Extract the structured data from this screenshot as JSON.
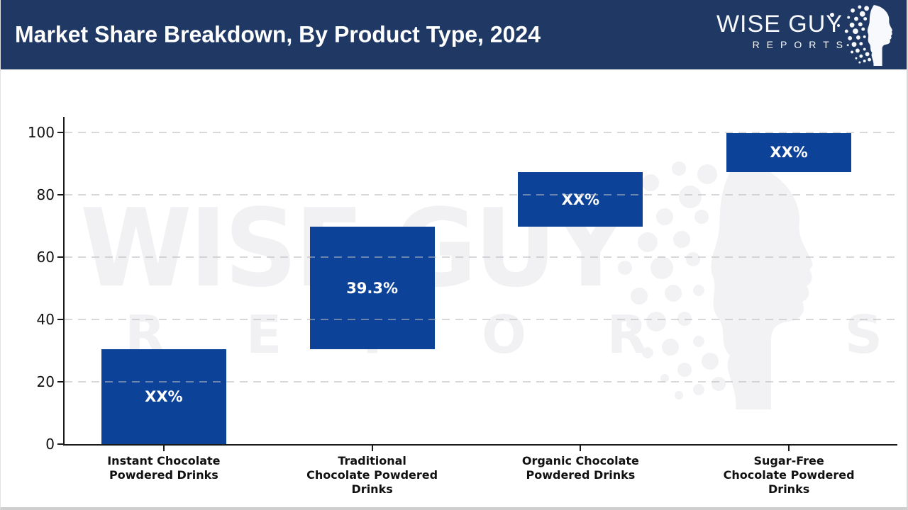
{
  "header": {
    "title": "Market Share Breakdown, By Product Type, 2024",
    "bg_color": "#1f3864",
    "logo": {
      "line1": "WISE GUY",
      "line2": "REPORTS"
    }
  },
  "watermark": {
    "line1": "WISE GUY",
    "line2": "R E P O R T S"
  },
  "chart_data": {
    "type": "bar",
    "subtype": "floating-segment-waterfall",
    "title": "Market Share Breakdown, By Product Type, 2024",
    "categories": [
      "Instant Chocolate Powdered Drinks",
      "Traditional Chocolate Powdered Drinks",
      "Organic Chocolate Powdered Drinks",
      "Sugar-Free Chocolate Powdered Drinks"
    ],
    "category_label_lines": [
      [
        "Instant Chocolate",
        "Powdered Drinks"
      ],
      [
        "Traditional",
        "Chocolate Powdered",
        "Drinks"
      ],
      [
        "Organic Chocolate",
        "Powdered Drinks"
      ],
      [
        "Sugar-Free",
        "Chocolate Powdered",
        "Drinks"
      ]
    ],
    "series": [
      {
        "name": "Market Share",
        "segments": [
          {
            "category": "Instant Chocolate Powdered Drinks",
            "start": 0,
            "end": 30.4,
            "height": 30.4,
            "label": "XX%"
          },
          {
            "category": "Traditional Chocolate Powdered Drinks",
            "start": 30.4,
            "end": 69.7,
            "height": 39.3,
            "label": "39.3%"
          },
          {
            "category": "Organic Chocolate Powdered Drinks",
            "start": 69.7,
            "end": 87.3,
            "height": 17.6,
            "label": "XX%"
          },
          {
            "category": "Sugar-Free Chocolate Powdered Drinks",
            "start": 87.3,
            "end": 99.8,
            "height": 12.5,
            "label": "XX%"
          }
        ]
      }
    ],
    "y_ticks": [
      0,
      20,
      40,
      60,
      80,
      100
    ],
    "ylim": [
      0,
      105
    ],
    "grid": "horizontal-dashed",
    "legend": "none",
    "bar_color": "#0c4399",
    "bar_label_color": "#ffffff",
    "axis_color": "#1a1a1a"
  }
}
